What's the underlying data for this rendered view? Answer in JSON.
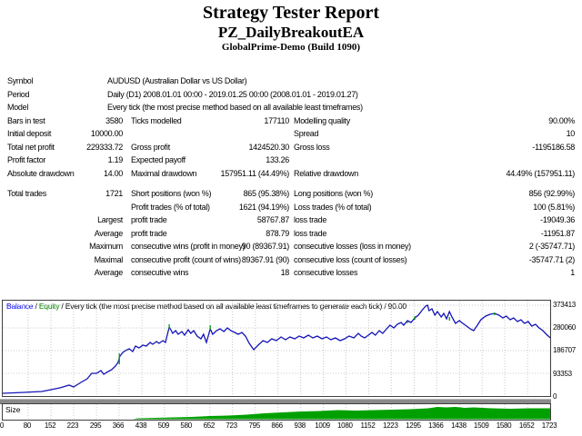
{
  "header": {
    "title": "Strategy Tester Report",
    "ea_name": "PZ_DailyBreakoutEA",
    "server_build": "GlobalPrime-Demo (Build 1090)"
  },
  "info_rows": [
    {
      "label": "Symbol",
      "value": "AUDUSD (Australian Dollar vs US Dollar)"
    },
    {
      "label": "Period",
      "value": "Daily (D1) 2008.01.01 00:00 - 2019.01.25 00:00 (2008.01.01 - 2019.01.27)"
    },
    {
      "label": "Model",
      "value": "Every tick (the most precise method based on all available least timeframes)"
    }
  ],
  "stats_rows": [
    {
      "cells": [
        "Bars in test",
        "3580",
        "Ticks modelled",
        "177110",
        "Modelling quality",
        "90.00%"
      ]
    },
    {
      "cells": [
        "Initial deposit",
        "10000.00",
        "",
        "",
        "Spread",
        "10"
      ]
    },
    {
      "cells": [
        "Total net profit",
        "229333.72",
        "Gross profit",
        "1424520.30",
        "Gross loss",
        "-1195186.58"
      ]
    },
    {
      "cells": [
        "Profit factor",
        "1.19",
        "Expected payoff",
        "133.26",
        "",
        ""
      ]
    },
    {
      "cells": [
        "Absolute drawdown",
        "14.00",
        "Maximal drawdown",
        "157951.11 (44.49%)",
        "Relative drawdown",
        "44.49% (157951.11)"
      ]
    },
    {
      "gap_before": true,
      "cells": [
        "Total trades",
        "1721",
        "Short positions (won %)",
        "865 (95.38%)",
        "Long positions (won %)",
        "856 (92.99%)"
      ]
    },
    {
      "cells": [
        "",
        "",
        "Profit trades (% of total)",
        "1621 (94.19%)",
        "Loss trades (% of total)",
        "100 (5.81%)"
      ]
    },
    {
      "cells": [
        "",
        "Largest",
        "profit trade",
        "58767.87",
        "loss trade",
        "-19049.36"
      ]
    },
    {
      "cells": [
        "",
        "Average",
        "profit trade",
        "878.79",
        "loss trade",
        "-11951.87"
      ]
    },
    {
      "cells": [
        "",
        "Maximum",
        "consecutive wins (profit in money)",
        "90 (89367.91)",
        "consecutive losses (loss in money)",
        "2 (-35747.71)"
      ]
    },
    {
      "cells": [
        "",
        "Maximal",
        "consecutive profit (count of wins)",
        "89367.91 (90)",
        "consecutive loss (count of losses)",
        "-35747.71 (2)"
      ]
    },
    {
      "cells": [
        "",
        "Average",
        "consecutive wins",
        "18",
        "consecutive losses",
        "1"
      ]
    }
  ],
  "colors": {
    "balance_line": "#1414b8",
    "equity_line": "#00a000",
    "size_fill": "#00a000",
    "grid": "#c8c8c8",
    "frame": "#404040",
    "balance_label": "#0000ff",
    "equity_label": "#008000"
  },
  "chart_data": {
    "type": "line",
    "header_parts": [
      {
        "text": "Balance",
        "color": "#0000ff"
      },
      {
        "text": " / ",
        "color": "#000000"
      },
      {
        "text": "Equity",
        "color": "#008000"
      },
      {
        "text": " / Every tick (the most precise method based on all available least timeframes to generate each tick) / 90.00",
        "color": "#000000"
      }
    ],
    "size_title": "Size",
    "xlim": [
      0,
      1723
    ],
    "ylim": [
      0,
      392000
    ],
    "y_ticks": [
      373413,
      280060,
      186707,
      93353,
      0
    ],
    "x_ticks": [
      0,
      80,
      152,
      223,
      295,
      366,
      438,
      509,
      580,
      652,
      723,
      795,
      866,
      938,
      1009,
      1080,
      1152,
      1223,
      1295,
      1366,
      1438,
      1509,
      1580,
      1652,
      1723
    ],
    "balance": [
      [
        0,
        11200
      ],
      [
        66,
        14900
      ],
      [
        123,
        18700
      ],
      [
        152,
        26100
      ],
      [
        180,
        33600
      ],
      [
        209,
        44800
      ],
      [
        223,
        37300
      ],
      [
        246,
        56000
      ],
      [
        266,
        70900
      ],
      [
        280,
        93400
      ],
      [
        295,
        93400
      ],
      [
        309,
        104600
      ],
      [
        318,
        89600
      ],
      [
        332,
        100800
      ],
      [
        343,
        108300
      ],
      [
        355,
        123200
      ],
      [
        363,
        138200
      ],
      [
        369,
        164300
      ],
      [
        378,
        179200
      ],
      [
        386,
        186700
      ],
      [
        398,
        194200
      ],
      [
        409,
        183000
      ],
      [
        418,
        205400
      ],
      [
        429,
        197900
      ],
      [
        441,
        209100
      ],
      [
        452,
        205400
      ],
      [
        464,
        220300
      ],
      [
        472,
        212800
      ],
      [
        484,
        224000
      ],
      [
        492,
        216600
      ],
      [
        504,
        227800
      ],
      [
        512,
        220300
      ],
      [
        524,
        283800
      ],
      [
        529,
        272600
      ],
      [
        535,
        257700
      ],
      [
        544,
        268900
      ],
      [
        552,
        253900
      ],
      [
        564,
        265100
      ],
      [
        572,
        250200
      ],
      [
        584,
        272600
      ],
      [
        592,
        257700
      ],
      [
        601,
        268900
      ],
      [
        612,
        246500
      ],
      [
        624,
        235200
      ],
      [
        632,
        253900
      ],
      [
        641,
        220300
      ],
      [
        653,
        276300
      ],
      [
        661,
        253900
      ],
      [
        673,
        268900
      ],
      [
        684,
        276300
      ],
      [
        696,
        265100
      ],
      [
        707,
        280100
      ],
      [
        718,
        268900
      ],
      [
        730,
        261400
      ],
      [
        741,
        253900
      ],
      [
        753,
        261400
      ],
      [
        764,
        246500
      ],
      [
        776,
        216600
      ],
      [
        790,
        190400
      ],
      [
        804,
        209100
      ],
      [
        819,
        227800
      ],
      [
        833,
        220300
      ],
      [
        847,
        235200
      ],
      [
        861,
        227800
      ],
      [
        876,
        242700
      ],
      [
        890,
        231500
      ],
      [
        904,
        242700
      ],
      [
        919,
        235200
      ],
      [
        933,
        246500
      ],
      [
        947,
        239000
      ],
      [
        962,
        250200
      ],
      [
        976,
        239000
      ],
      [
        990,
        246500
      ],
      [
        1005,
        235200
      ],
      [
        1019,
        242700
      ],
      [
        1033,
        231500
      ],
      [
        1047,
        239000
      ],
      [
        1062,
        227800
      ],
      [
        1076,
        235200
      ],
      [
        1090,
        246500
      ],
      [
        1105,
        239000
      ],
      [
        1119,
        257700
      ],
      [
        1128,
        246500
      ],
      [
        1139,
        239000
      ],
      [
        1151,
        250200
      ],
      [
        1162,
        261400
      ],
      [
        1173,
        250200
      ],
      [
        1185,
        268900
      ],
      [
        1196,
        257700
      ],
      [
        1208,
        276300
      ],
      [
        1219,
        291300
      ],
      [
        1231,
        280100
      ],
      [
        1242,
        295000
      ],
      [
        1254,
        302500
      ],
      [
        1262,
        291300
      ],
      [
        1274,
        309900
      ],
      [
        1285,
        302500
      ],
      [
        1297,
        321100
      ],
      [
        1308,
        332300
      ],
      [
        1319,
        351000
      ],
      [
        1331,
        369700
      ],
      [
        1337,
        373413
      ],
      [
        1342,
        351000
      ],
      [
        1351,
        358500
      ],
      [
        1360,
        332300
      ],
      [
        1368,
        347300
      ],
      [
        1380,
        324900
      ],
      [
        1388,
        339800
      ],
      [
        1397,
        317400
      ],
      [
        1406,
        347300
      ],
      [
        1414,
        324900
      ],
      [
        1425,
        298700
      ],
      [
        1437,
        309900
      ],
      [
        1448,
        298700
      ],
      [
        1460,
        287500
      ],
      [
        1471,
        276300
      ],
      [
        1482,
        268900
      ],
      [
        1494,
        291300
      ],
      [
        1505,
        313700
      ],
      [
        1520,
        328600
      ],
      [
        1534,
        336100
      ],
      [
        1548,
        339800
      ],
      [
        1562,
        332300
      ],
      [
        1574,
        321100
      ],
      [
        1585,
        328600
      ],
      [
        1597,
        313700
      ],
      [
        1608,
        321100
      ],
      [
        1620,
        306200
      ],
      [
        1631,
        313700
      ],
      [
        1642,
        298700
      ],
      [
        1654,
        306200
      ],
      [
        1665,
        287500
      ],
      [
        1677,
        295000
      ],
      [
        1688,
        280100
      ],
      [
        1700,
        268900
      ],
      [
        1711,
        253900
      ],
      [
        1723,
        239334
      ]
    ],
    "equity_marks": [
      [
        367,
        130000,
        175000
      ],
      [
        524,
        276300,
        295000
      ],
      [
        653,
        272600,
        291300
      ],
      [
        1274,
        300000,
        308000
      ],
      [
        1297,
        313700,
        328600
      ],
      [
        1406,
        310000,
        324900
      ],
      [
        1548,
        332000,
        343000
      ]
    ],
    "size_profile": [
      [
        0,
        0
      ],
      [
        410,
        0
      ],
      [
        424,
        1
      ],
      [
        481,
        1.5
      ],
      [
        538,
        2
      ],
      [
        595,
        2.5
      ],
      [
        652,
        3.5
      ],
      [
        710,
        4
      ],
      [
        767,
        5
      ],
      [
        824,
        6.5
      ],
      [
        881,
        7.5
      ],
      [
        939,
        8.5
      ],
      [
        996,
        9
      ],
      [
        1053,
        10
      ],
      [
        1110,
        9.5
      ],
      [
        1168,
        10
      ],
      [
        1225,
        10.5
      ],
      [
        1282,
        11
      ],
      [
        1339,
        12
      ],
      [
        1368,
        13.5
      ],
      [
        1396,
        13
      ],
      [
        1425,
        13.5
      ],
      [
        1454,
        12.5
      ],
      [
        1482,
        13
      ],
      [
        1539,
        12
      ],
      [
        1597,
        11.5
      ],
      [
        1654,
        12
      ],
      [
        1723,
        12
      ]
    ]
  }
}
